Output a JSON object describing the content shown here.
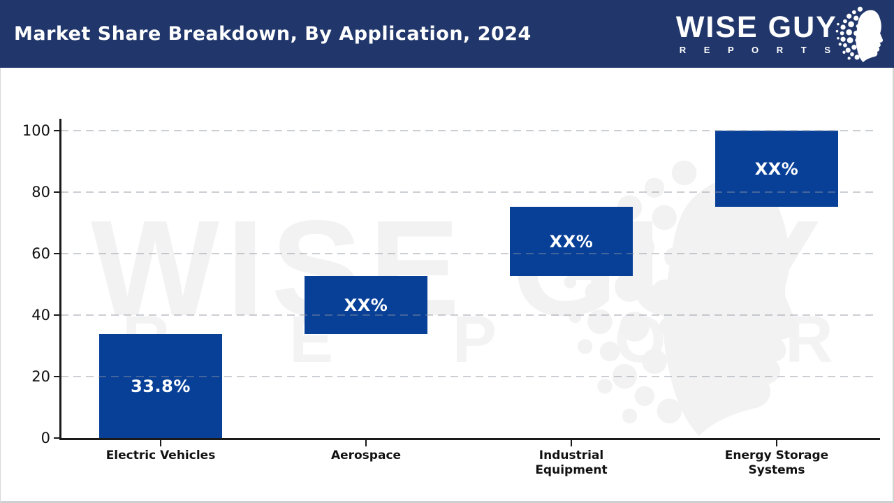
{
  "header": {
    "title": "Market Share Breakdown, By Application, 2024",
    "bg_color": "#21376b",
    "brand": {
      "line1": "WISE GUY",
      "line2": "R E P O R T S"
    }
  },
  "watermark": {
    "line1": "WISE GUY",
    "line2": "R E P O R T S"
  },
  "chart_data": {
    "type": "bar",
    "subtype": "waterfall",
    "title": "Market Share Breakdown, By Application, 2024",
    "categories": [
      "Electric Vehicles",
      "Aerospace",
      "Industrial Equipment",
      "Energy Storage Systems"
    ],
    "segments": [
      {
        "category": "Electric Vehicles",
        "start": 0,
        "end": 33.8,
        "label": "33.8%"
      },
      {
        "category": "Aerospace",
        "start": 33.8,
        "end": 52.7,
        "label": "XX%"
      },
      {
        "category": "Industrial Equipment",
        "start": 52.7,
        "end": 75.2,
        "label": "XX%"
      },
      {
        "category": "Energy Storage Systems",
        "start": 75.2,
        "end": 100,
        "label": "XX%"
      }
    ],
    "ylim": [
      0,
      100
    ],
    "yticks": [
      0,
      20,
      40,
      60,
      80,
      100
    ],
    "xlabel": "",
    "ylabel": "",
    "legend": "none",
    "grid": "horizontal-dashed",
    "bar_color": "#084098",
    "bar_label_color": "#ffffff",
    "axis_color": "#1a1a1a"
  }
}
